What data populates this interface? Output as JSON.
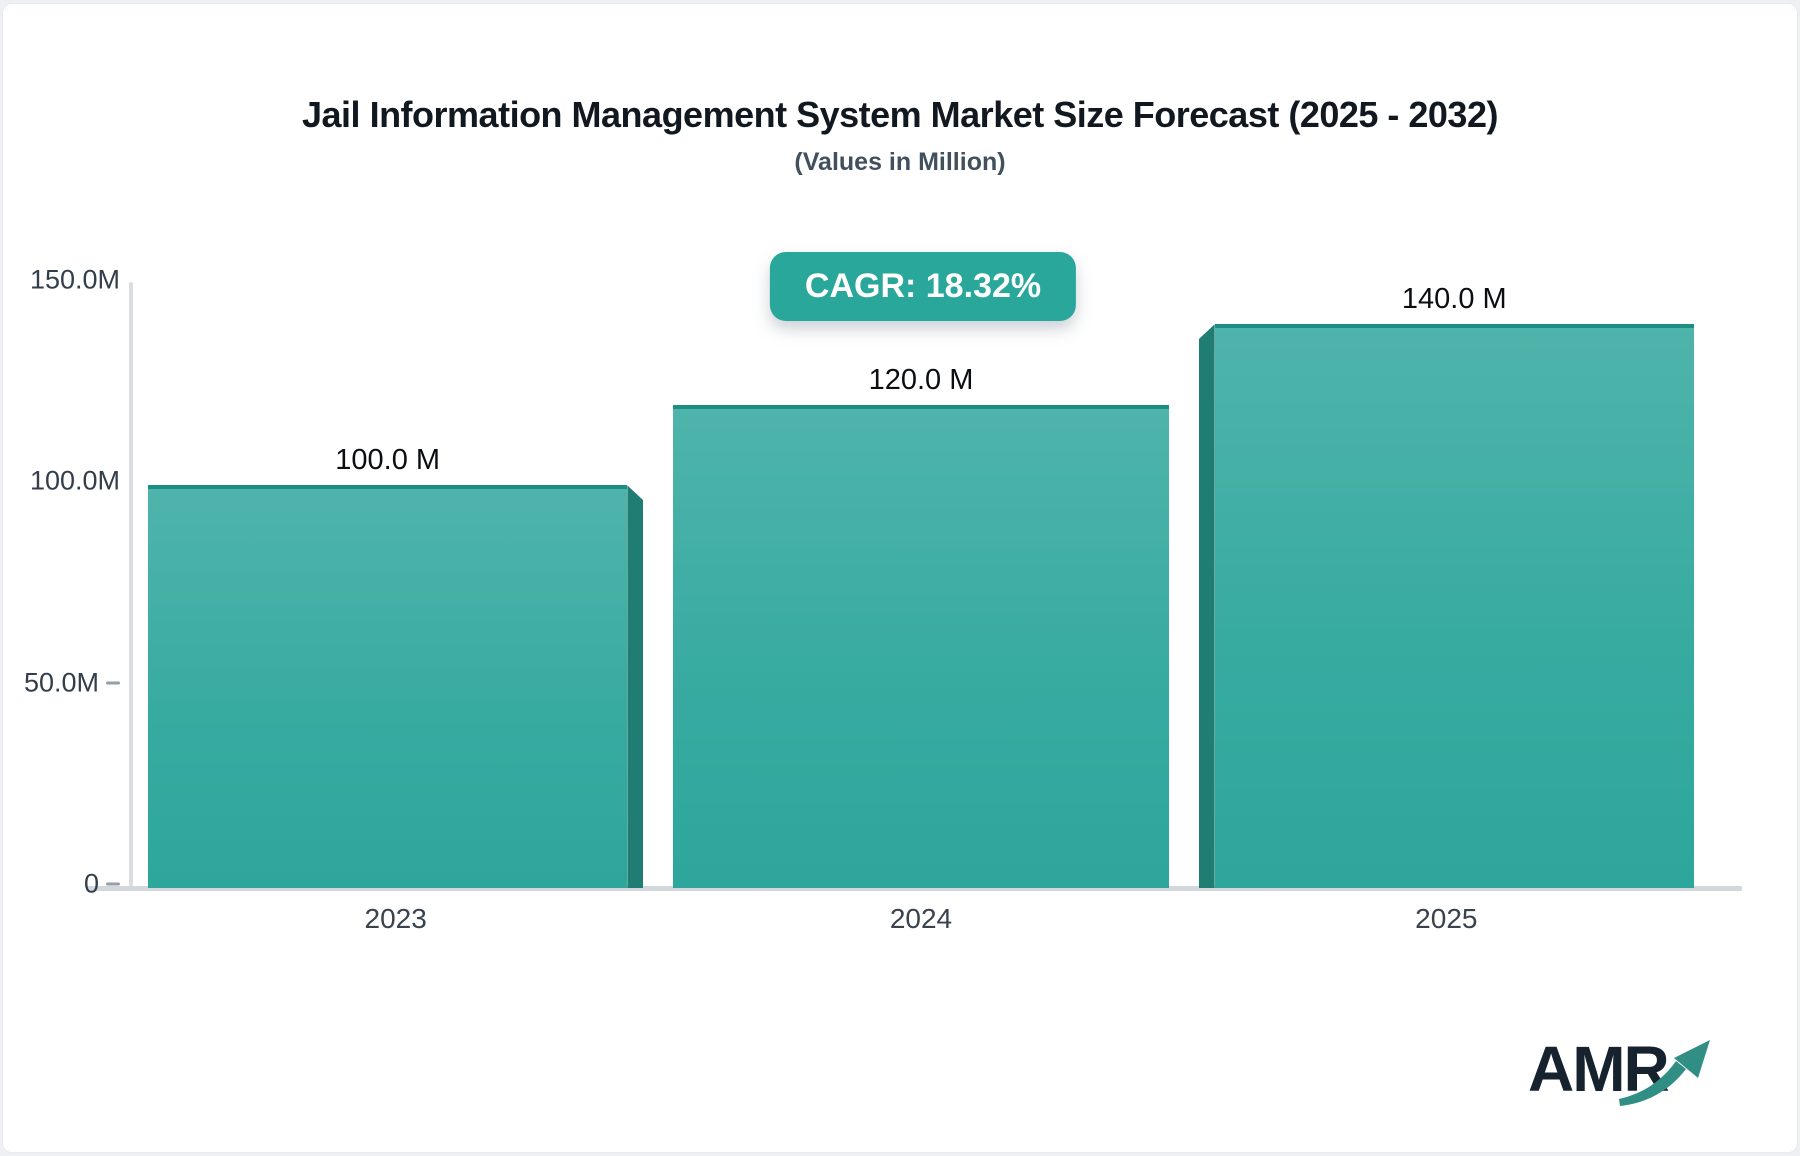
{
  "header": {
    "title": "Jail Information Management System Market Size Forecast (2025 - 2032)",
    "subtitle": "(Values in Million)"
  },
  "badge": {
    "label": "CAGR: 18.32%",
    "bg_color": "#2aa79b",
    "text_color": "#ffffff"
  },
  "chart_data": {
    "type": "bar",
    "title": "Jail Information Management System Market Size Forecast (2025 - 2032)",
    "subtitle": "(Values in Million)",
    "unit": "Million",
    "categories": [
      "2023",
      "2024",
      "2025"
    ],
    "values": [
      100,
      120,
      140
    ],
    "value_labels": [
      "100.0 M",
      "120.0 M",
      "140.0 M"
    ],
    "cagr_label": "CAGR: 18.32%",
    "ylim": [
      0,
      150
    ],
    "yticks": [
      {
        "value": 150,
        "label": "150.0M",
        "dash": false
      },
      {
        "value": 100,
        "label": "100.0M",
        "dash": false
      },
      {
        "value": 50,
        "label": "50.0M",
        "dash": true
      },
      {
        "value": 0,
        "label": "0",
        "dash": true
      }
    ],
    "grid": false,
    "legend": false,
    "bevels": [
      "right",
      "none",
      "left"
    ],
    "colors": {
      "bar_gradient_top": "#4fb4ab",
      "bar_gradient_bottom": "#2da69b",
      "bar_top_border": "#1e8d82",
      "bar_side": "#1f7d73",
      "axis_line": "#d3d7dc",
      "accent": "#2aa79b"
    }
  },
  "logo": {
    "text": "AMR",
    "text_color": "#16222e",
    "arrow_color": "#318e84"
  }
}
